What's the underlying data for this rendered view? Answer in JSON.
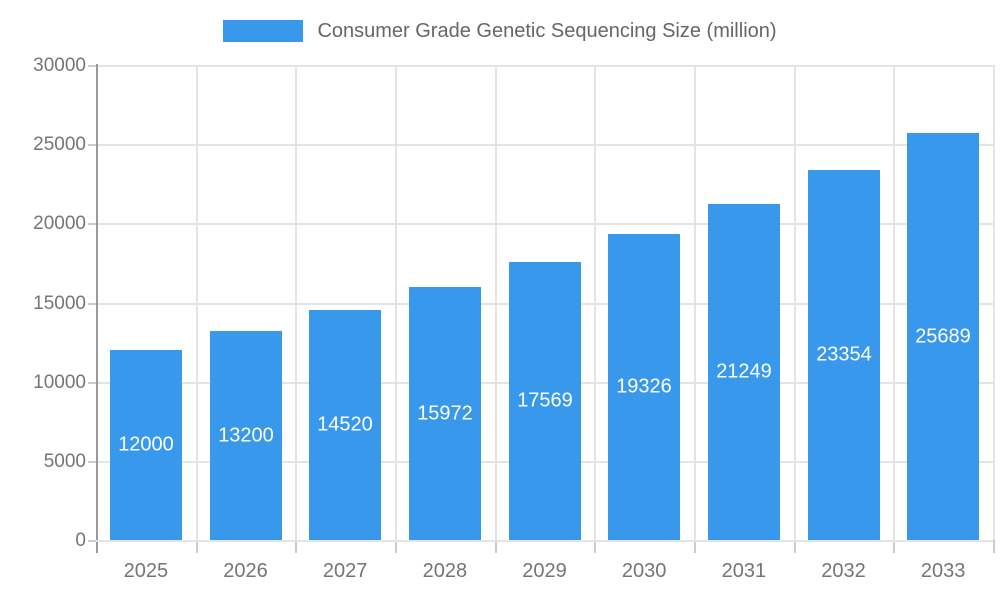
{
  "chart_data": {
    "type": "bar",
    "title": "Consumer Grade Genetic Sequencing Size (million)",
    "categories": [
      "2025",
      "2026",
      "2027",
      "2028",
      "2029",
      "2030",
      "2031",
      "2032",
      "2033"
    ],
    "values": [
      12000,
      13200,
      14520,
      15972,
      17569,
      19326,
      21249,
      23354,
      25689
    ],
    "bar_labels": [
      "12000",
      "13200",
      "14520",
      "15972",
      "17569",
      "19326",
      "21249",
      "23354",
      "25689"
    ],
    "xlabel": "",
    "ylabel": "",
    "ylim": [
      0,
      30000
    ],
    "y_ticks": [
      0,
      5000,
      10000,
      15000,
      20000,
      25000,
      30000
    ],
    "y_tick_labels": [
      "0",
      "5000",
      "10000",
      "15000",
      "20000",
      "25000",
      "30000"
    ],
    "grid": true,
    "legend_position": "top",
    "bar_labels_inside": "centered"
  },
  "colors": {
    "bar": "#3898ec",
    "bar_label": "#ffffff",
    "grid_line": "#e4e4e4",
    "axis_line": "#9a9a9a",
    "tick_mark": "#cccccc",
    "tick_label": "#757575",
    "legend_text": "#666666"
  }
}
